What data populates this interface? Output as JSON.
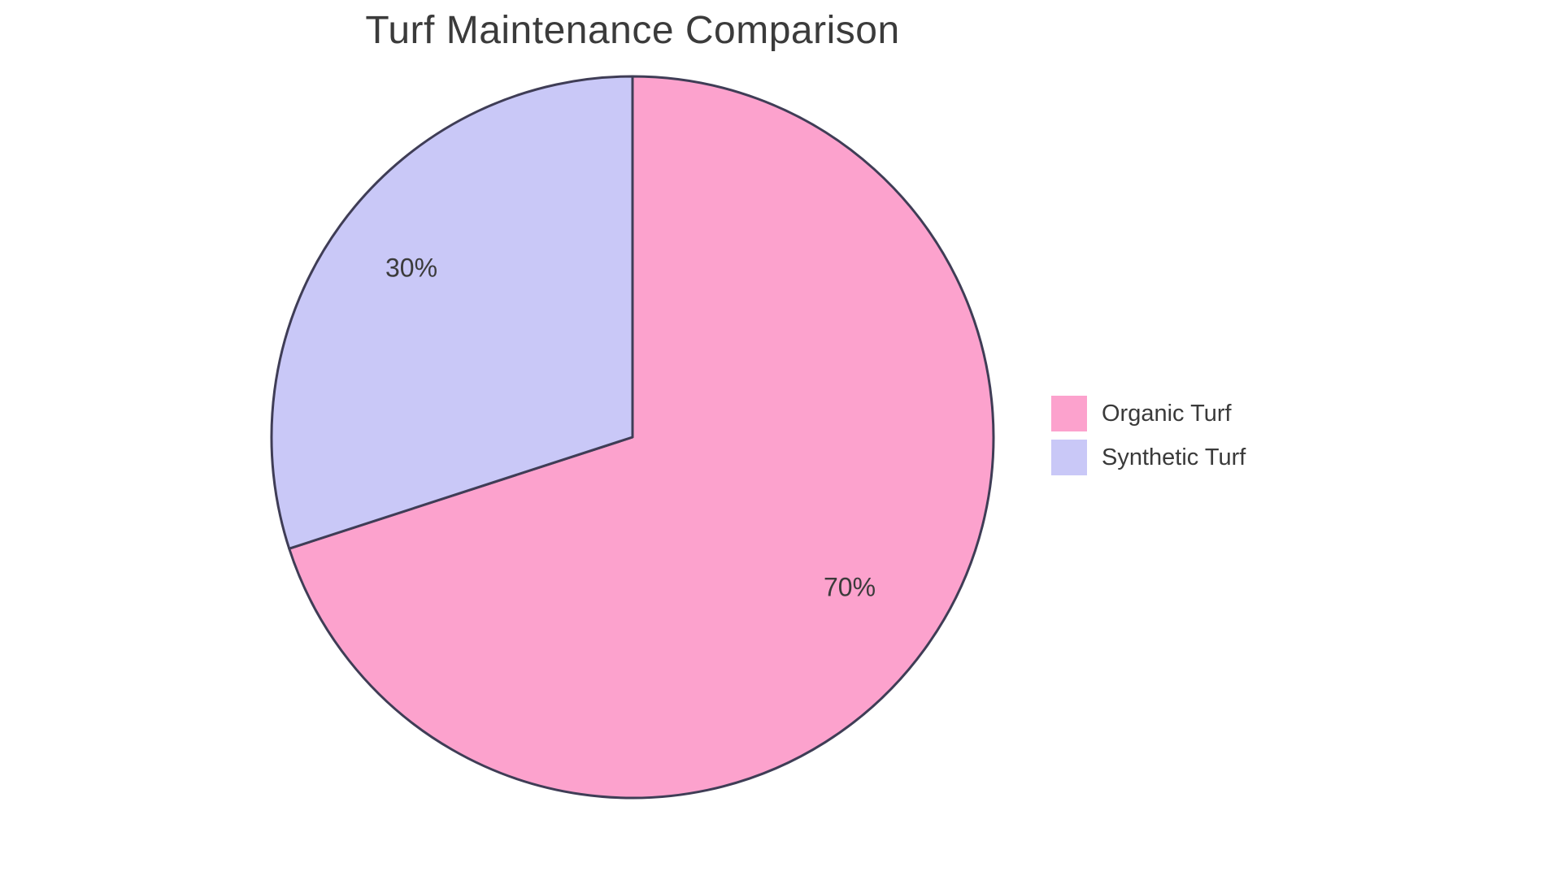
{
  "title": "Turf Maintenance Comparison",
  "chart_data": {
    "type": "pie",
    "title": "Turf Maintenance Comparison",
    "labels": [
      "Organic Turf",
      "Synthetic Turf"
    ],
    "values": [
      70,
      30
    ],
    "slice_labels": [
      "70%",
      "30%"
    ],
    "colors": [
      "#FCA2CD",
      "#C9C8F7"
    ],
    "stroke_color": "#3F3D56",
    "stroke_width": 3,
    "background": "#FFFFFF",
    "text_color": "#3B3B3B",
    "start_angle_deg": 0,
    "direction": "clockwise",
    "legend": {
      "position": "right",
      "entries": [
        {
          "label": "Organic Turf",
          "color": "#FCA2CD"
        },
        {
          "label": "Synthetic Turf",
          "color": "#C9C8F7"
        }
      ]
    }
  }
}
